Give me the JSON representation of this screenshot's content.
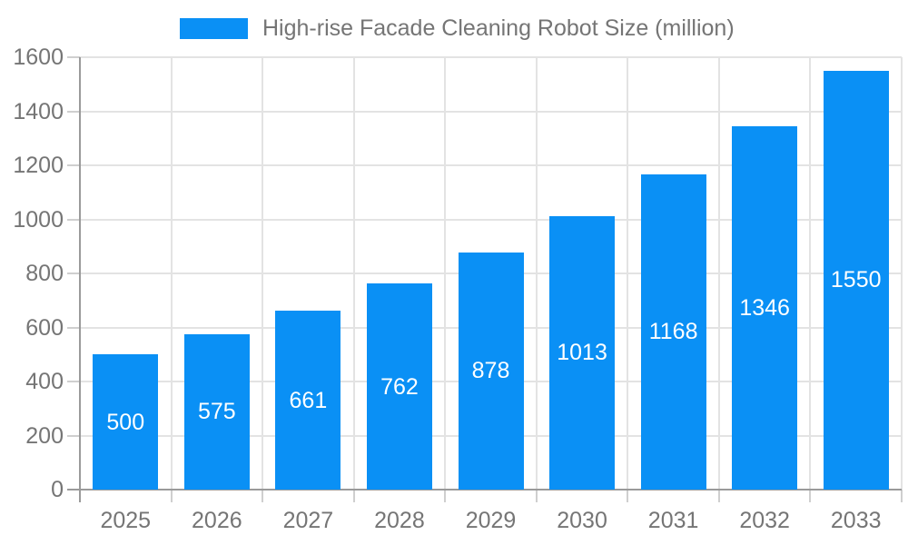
{
  "legend": {
    "label": "High-rise Facade Cleaning Robot Size (million)"
  },
  "colors": {
    "bar": "#0a90f5",
    "axis_line": "#9a9a9a",
    "gridline": "#e3e3e3",
    "tick_mark": "#cfcfcf",
    "tick_text": "#757575",
    "value_text": "#ffffff",
    "background": "#ffffff"
  },
  "chart_data": {
    "type": "bar",
    "title": "High-rise Facade Cleaning Robot Size (million)",
    "legend_entries": [
      "High-rise Facade Cleaning Robot Size (million)"
    ],
    "legend_position": "top",
    "categories": [
      "2025",
      "2026",
      "2027",
      "2028",
      "2029",
      "2030",
      "2031",
      "2032",
      "2033"
    ],
    "values": [
      500,
      575,
      661,
      762,
      878,
      1013,
      1168,
      1346,
      1550
    ],
    "xlabel": "",
    "ylabel": "",
    "ylim": [
      0,
      1600
    ],
    "ytick_step": 200,
    "yticks": [
      0,
      200,
      400,
      600,
      800,
      1000,
      1200,
      1400,
      1600
    ],
    "grid": true,
    "value_labels": "inside-center"
  }
}
